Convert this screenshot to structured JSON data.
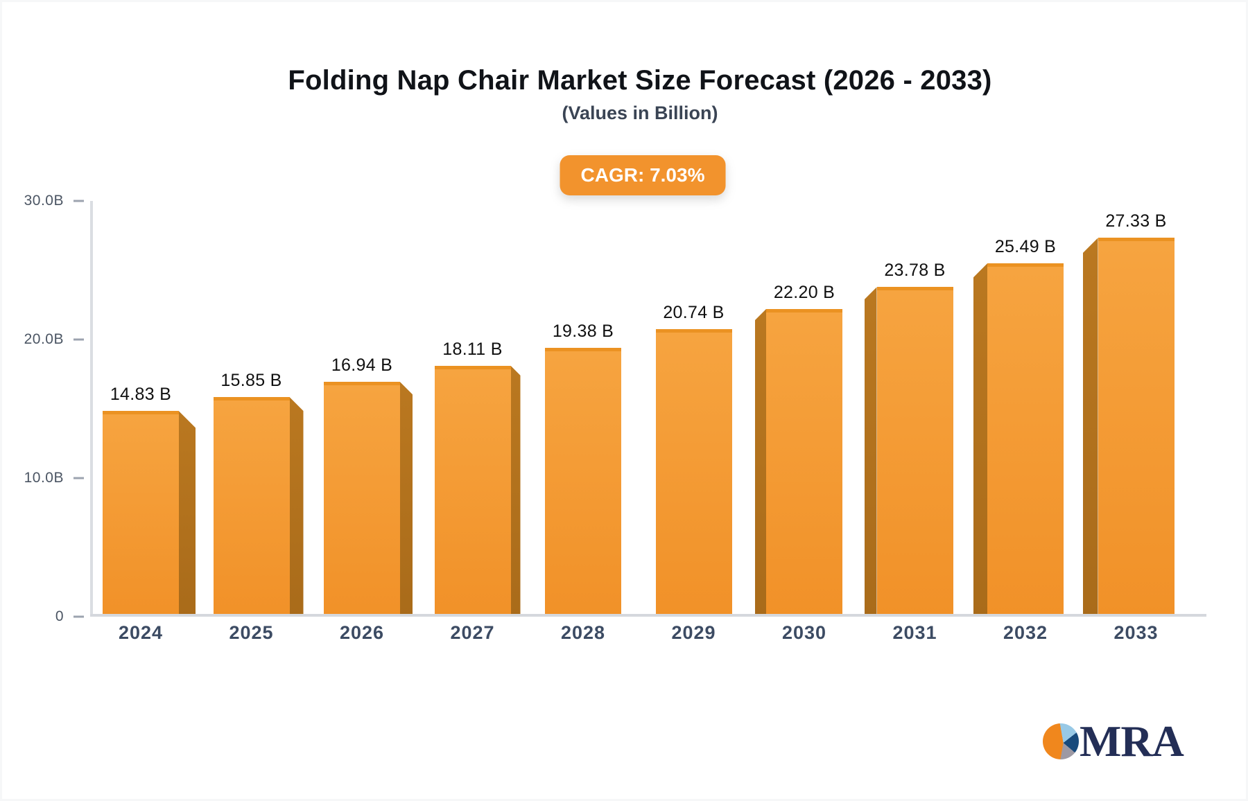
{
  "header": {
    "title": "Folding Nap Chair Market Size Forecast (2026 - 2033)",
    "subtitle": "(Values in Billion)",
    "badge": "CAGR: 7.03%"
  },
  "chart_data": {
    "type": "bar",
    "title": "Folding Nap Chair Market Size Forecast (2026 - 2033)",
    "subtitle": "(Values in Billion)",
    "annotation": "CAGR: 7.03%",
    "categories": [
      "2024",
      "2025",
      "2026",
      "2027",
      "2028",
      "2029",
      "2030",
      "2031",
      "2032",
      "2033"
    ],
    "values": [
      14.83,
      15.85,
      16.94,
      18.11,
      19.38,
      20.74,
      22.2,
      23.78,
      25.49,
      27.33
    ],
    "value_labels": [
      "14.83 B",
      "15.85 B",
      "16.94 B",
      "18.11 B",
      "19.38 B",
      "20.74 B",
      "22.20 B",
      "23.78 B",
      "25.49 B",
      "27.33 B"
    ],
    "xlabel": "",
    "ylabel": "",
    "ylim": [
      0,
      30
    ],
    "yticks": [
      {
        "label": "30.0B",
        "value": 30
      },
      {
        "label": "20.0B",
        "value": 20
      },
      {
        "label": "10.0B",
        "value": 10
      },
      {
        "label": "0",
        "value": 0
      }
    ],
    "grid": false,
    "legend": false,
    "colors": {
      "bar_face_top": "#f6a440",
      "bar_face_bottom": "#f19128",
      "bar_top_edge": "#eb9222",
      "bar_side": "#b0701c",
      "badge_bg": "#f2932d",
      "badge_text": "#ffffff",
      "axis_line": "#dadde2",
      "tick_text": "#4b5563",
      "value_text": "#101010",
      "category_text": "#3c4b63"
    }
  },
  "logo": {
    "text": "MRA",
    "icon": "pie-chart-logo-icon",
    "colors": {
      "navy": "#232e56",
      "pie_orange": "#f0871d",
      "pie_lightblue": "#98c9e6",
      "pie_navy": "#174a7c",
      "pie_gray": "#9d99a3"
    }
  }
}
